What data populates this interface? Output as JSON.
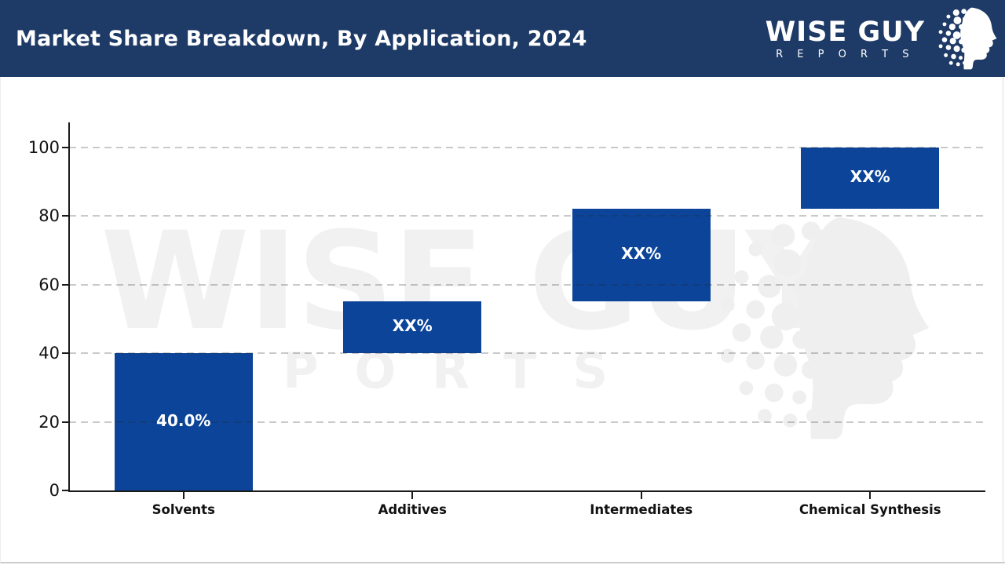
{
  "header": {
    "title": "Market Share Breakdown, By Application, 2024",
    "background_color": "#1e3a66",
    "logo": {
      "line1": "WISE GUY",
      "line2": "R E P O R T S"
    }
  },
  "watermark": {
    "line1": "WISE GUY",
    "line2": "REPORTS"
  },
  "chart_data": {
    "type": "bar",
    "variant": "waterfall",
    "title": "Market Share Breakdown, By Application, 2024",
    "categories": [
      "Solvents",
      "Additives",
      "Intermediates",
      "Chemical Synthesis"
    ],
    "segments": [
      {
        "category": "Solvents",
        "start": 0,
        "end": 40,
        "label": "40.0%"
      },
      {
        "category": "Additives",
        "start": 40,
        "end": 55,
        "label": "XX%"
      },
      {
        "category": "Intermediates",
        "start": 55,
        "end": 82,
        "label": "XX%"
      },
      {
        "category": "Chemical Synthesis",
        "start": 82,
        "end": 100,
        "label": "XX%"
      }
    ],
    "values_pct": [
      40,
      15,
      27,
      18
    ],
    "ylim": [
      0,
      100
    ],
    "yticks": [
      0,
      20,
      40,
      60,
      80,
      100
    ],
    "grid": {
      "axis": "y",
      "style": "dashed",
      "color": "#cccccc"
    },
    "bar_color": "#0b4499",
    "bar_label_color": "#ffffff",
    "axis_color": "#1a1a1a",
    "legend": null
  }
}
